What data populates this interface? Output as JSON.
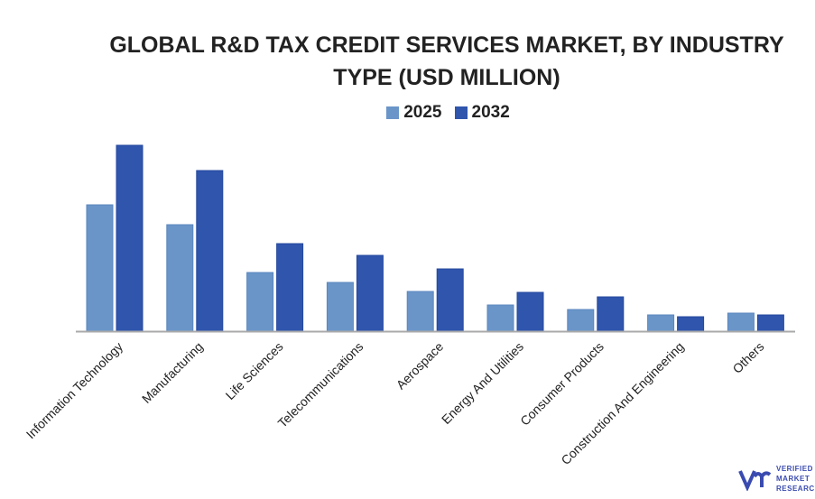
{
  "chart_data": {
    "type": "bar",
    "title": "GLOBAL R&D TAX CREDIT SERVICES MARKET, BY INDUSTRY TYPE (USD MILLION)",
    "title_lines": [
      "GLOBAL R&D TAX CREDIT SERVICES MARKET, BY INDUSTRY",
      "TYPE (USD MILLION)"
    ],
    "xlabel": "",
    "ylabel": "",
    "ylim": [
      0,
      210
    ],
    "grid": false,
    "legend_position": "top-center",
    "categories": [
      "Information Technology",
      "Manufacturing",
      "Life Sciences",
      "Telecommunications",
      "Aerospace",
      "Energy And Utilities",
      "Consumer Products",
      "Construction And Engineering",
      "Others"
    ],
    "series": [
      {
        "name": "2025",
        "color": "#6a95c9",
        "values": [
          140,
          118,
          65,
          54,
          44,
          29,
          24,
          18,
          20
        ]
      },
      {
        "name": "2032",
        "color": "#2f55ad",
        "values": [
          206,
          178,
          97,
          84,
          69,
          43,
          38,
          16,
          18
        ]
      }
    ]
  },
  "logo": {
    "lines": [
      "VERIFIED",
      "MARKET",
      "RESEARCH"
    ]
  }
}
